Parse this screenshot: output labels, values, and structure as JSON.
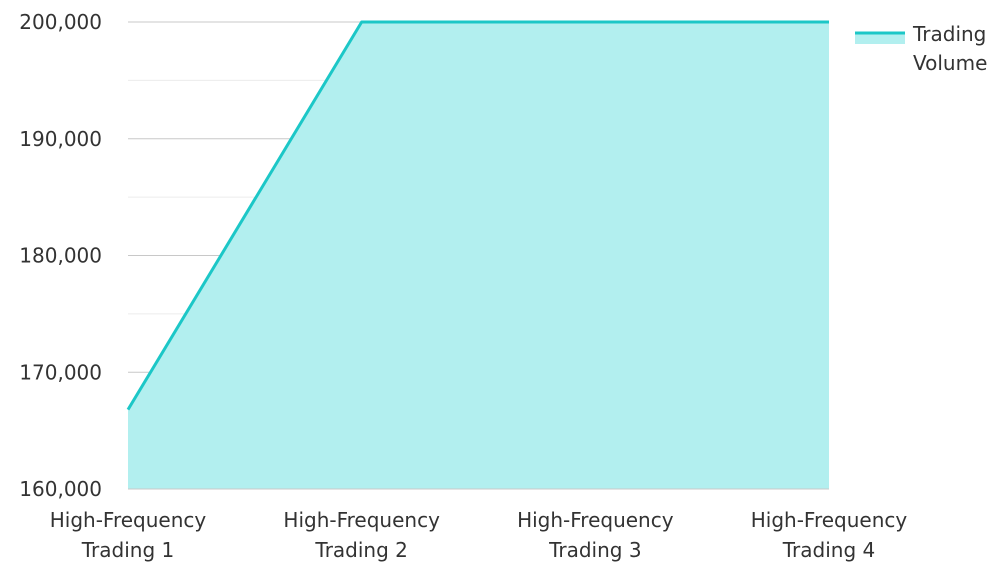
{
  "chart_data": {
    "type": "area",
    "title": "",
    "xlabel": "",
    "ylabel": "",
    "categories": [
      [
        "High-Frequency",
        "Trading 1"
      ],
      [
        "High-Frequency",
        "Trading 2"
      ],
      [
        "High-Frequency",
        "Trading 3"
      ],
      [
        "High-Frequency",
        "Trading 4"
      ]
    ],
    "series": [
      {
        "name": [
          "Trading",
          "Volume"
        ],
        "values": [
          166800,
          200000,
          200000,
          200000
        ],
        "line_color": "#1CC7C7",
        "fill_color": "#B2EFEF"
      }
    ],
    "ylim": [
      160000,
      200000
    ],
    "y_ticks": [
      160000,
      170000,
      180000,
      190000,
      200000
    ],
    "y_tick_labels": [
      "160,000",
      "170,000",
      "180,000",
      "190,000",
      "200,000"
    ],
    "grid": true,
    "legend_position": "top-right"
  }
}
